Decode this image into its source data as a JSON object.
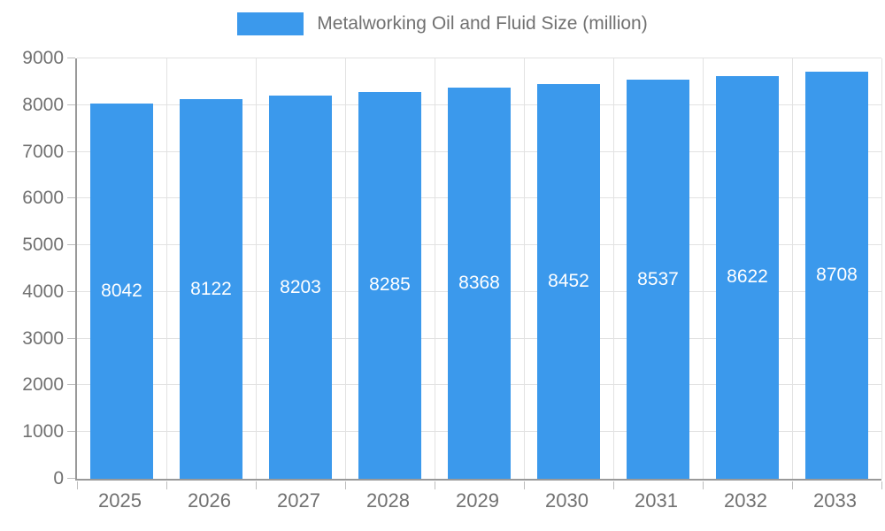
{
  "legend": {
    "label": "Metalworking Oil and Fluid Size (million)"
  },
  "colors": {
    "bar": "#3B99EC",
    "grid": "#e2e2e2",
    "axis": "#999999",
    "tick": "#bdbdbd",
    "text": "#717171",
    "value_label": "#ffffff",
    "background": "#ffffff"
  },
  "chart_data": {
    "type": "bar",
    "title": "Metalworking Oil and Fluid Size (million)",
    "categories": [
      "2025",
      "2026",
      "2027",
      "2028",
      "2029",
      "2030",
      "2031",
      "2032",
      "2033"
    ],
    "values": [
      8042,
      8122,
      8203,
      8285,
      8368,
      8452,
      8537,
      8622,
      8708
    ],
    "xlabel": "",
    "ylabel": "",
    "ylim": [
      0,
      9000
    ],
    "ytick_step": 1000,
    "yticks": [
      0,
      1000,
      2000,
      3000,
      4000,
      5000,
      6000,
      7000,
      8000,
      9000
    ],
    "grid": true,
    "legend_position": "top-center",
    "value_labels": "inside-middle"
  }
}
